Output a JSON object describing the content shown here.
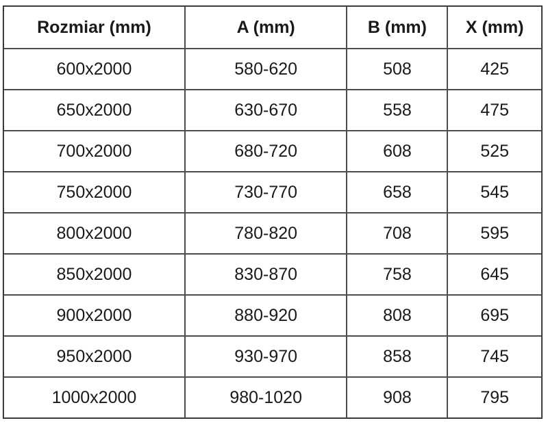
{
  "table": {
    "title": "size-specification-table",
    "headers": [
      "Rozmiar (mm)",
      "A (mm)",
      "B (mm)",
      "X (mm)"
    ],
    "rows": [
      [
        "600x2000",
        "580-620",
        "508",
        "425"
      ],
      [
        "650x2000",
        "630-670",
        "558",
        "475"
      ],
      [
        "700x2000",
        "680-720",
        "608",
        "525"
      ],
      [
        "750x2000",
        "730-770",
        "658",
        "545"
      ],
      [
        "800x2000",
        "780-820",
        "708",
        "595"
      ],
      [
        "850x2000",
        "830-870",
        "758",
        "645"
      ],
      [
        "900x2000",
        "880-920",
        "808",
        "695"
      ],
      [
        "950x2000",
        "930-970",
        "858",
        "745"
      ],
      [
        "1000x2000",
        "980-1020",
        "908",
        "795"
      ]
    ],
    "colors": {
      "grid_line": "#4d4d4d",
      "outer_border": "#262626",
      "background": "#ffffff",
      "text": "#1a1a1a"
    }
  },
  "chart_data": {
    "type": "table",
    "title": "Rozmiar (mm) size chart",
    "columns": [
      "Rozmiar (mm)",
      "A (mm)",
      "B (mm)",
      "X (mm)"
    ],
    "rows": [
      [
        "600x2000",
        "580-620",
        508,
        425
      ],
      [
        "650x2000",
        "630-670",
        558,
        475
      ],
      [
        "700x2000",
        "680-720",
        608,
        525
      ],
      [
        "750x2000",
        "730-770",
        658,
        545
      ],
      [
        "800x2000",
        "780-820",
        708,
        595
      ],
      [
        "850x2000",
        "830-870",
        758,
        645
      ],
      [
        "900x2000",
        "880-920",
        808,
        695
      ],
      [
        "950x2000",
        "930-970",
        858,
        745
      ],
      [
        "1000x2000",
        "980-1020",
        908,
        795
      ]
    ]
  }
}
